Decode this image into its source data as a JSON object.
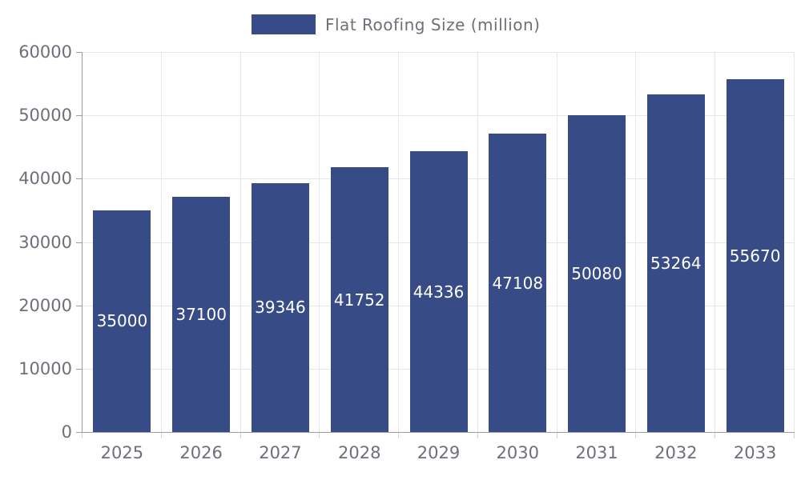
{
  "chart_data": {
    "type": "bar",
    "title": "",
    "legend": "Flat Roofing Size (million)",
    "legend_position": "top",
    "categories": [
      "2025",
      "2026",
      "2027",
      "2028",
      "2029",
      "2030",
      "2031",
      "2032",
      "2033"
    ],
    "series": [
      {
        "name": "Flat Roofing Size (million)",
        "values": [
          35000,
          37100,
          39346,
          41752,
          44336,
          47108,
          50080,
          53264,
          55670
        ]
      }
    ],
    "xlabel": "",
    "ylabel": "",
    "ylim": [
      0,
      60000
    ],
    "ytick_step": 10000,
    "yticks": [
      "0",
      "10000",
      "20000",
      "30000",
      "40000",
      "50000",
      "60000"
    ],
    "grid": "on",
    "bar_labels_visible": true,
    "colors": {
      "bar": "#374b87",
      "bar_label_text": "#ffffff",
      "axis_text": "#6e7079",
      "legend_text": "#6e7079",
      "grid_line": "#e3e6ea",
      "axis_line": "#999da3",
      "background": "#ffffff"
    }
  }
}
